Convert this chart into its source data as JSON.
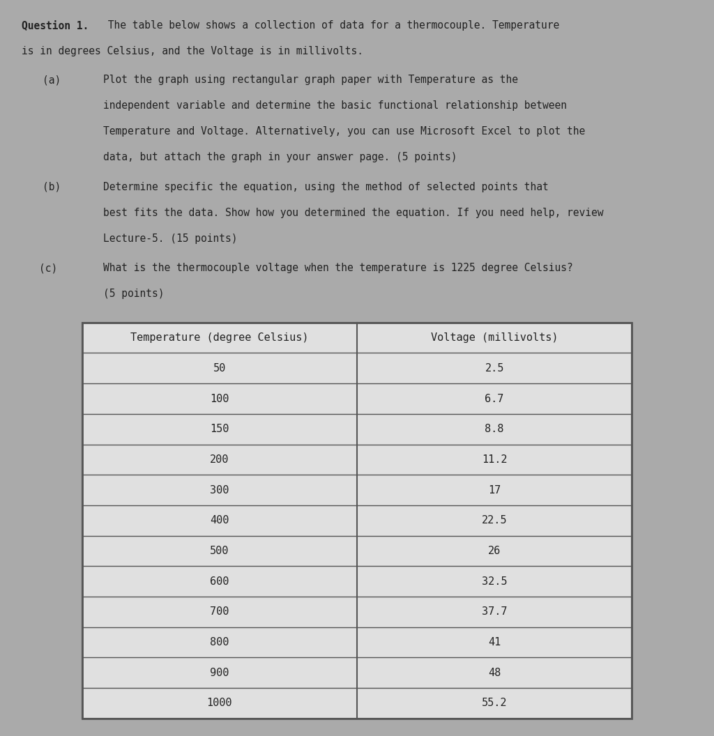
{
  "title_bold": "Question 1.",
  "title_normal": " The table below shows a collection of data for a thermocouple. Temperature",
  "title_line2": "is in degrees Celsius, and the Voltage is in millivolts.",
  "part_a_label": "(a)",
  "part_a_lines": [
    "Plot the graph using rectangular graph paper with Temperature as the",
    "independent variable and determine the basic functional relationship between",
    "Temperature and Voltage. Alternatively, you can use Microsoft Excel to plot the",
    "data, but attach the graph in your answer page. (5 points)"
  ],
  "part_b_label": "(b)",
  "part_b_lines": [
    "Determine specific the equation, using the method of selected points that",
    "best fits the data. Show how you determined the equation. If you need help, review",
    "Lecture-5. (15 points)"
  ],
  "part_c_label": "(c)",
  "part_c_lines": [
    "What is the thermocouple voltage when the temperature is 1225 degree Celsius?",
    "(5 points)"
  ],
  "col1_header": "Temperature (degree Celsius)",
  "col2_header": "Voltage (millivolts)",
  "temperatures": [
    50,
    100,
    150,
    200,
    300,
    400,
    500,
    600,
    700,
    800,
    900,
    1000
  ],
  "voltages": [
    "2.5",
    "6.7",
    "8.8",
    "11.2",
    "17",
    "22.5",
    "26",
    "32.5",
    "37.7",
    "41",
    "48",
    "55.2"
  ],
  "top_bg": "#c8c8c8",
  "bottom_bg": "#b0b0b0",
  "table_bg": "#e0e0e0",
  "text_color": "#222222",
  "border_color": "#555555"
}
